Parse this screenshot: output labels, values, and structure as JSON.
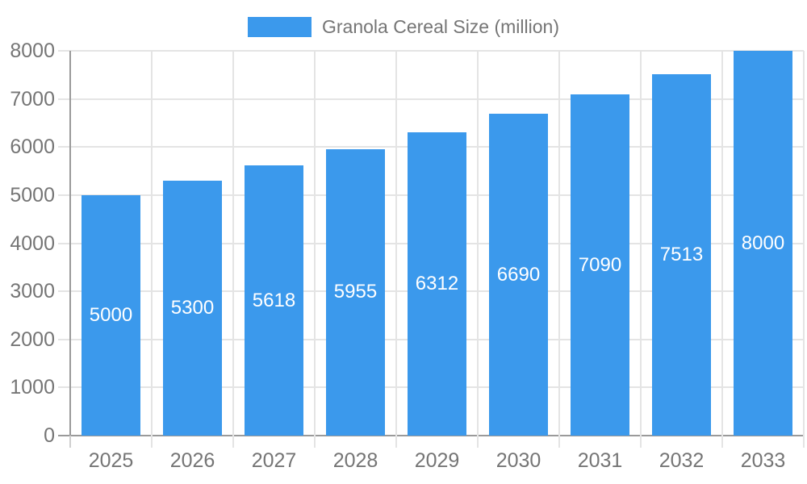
{
  "chart_data": {
    "type": "bar",
    "title": "Granola Cereal Size (million)",
    "legend_entries": [
      "Granola Cereal Size (million)"
    ],
    "legend_position": "top-center",
    "categories": [
      "2025",
      "2026",
      "2027",
      "2028",
      "2029",
      "2030",
      "2031",
      "2032",
      "2033"
    ],
    "series": [
      {
        "name": "Granola Cereal Size (million)",
        "values": [
          5000,
          5300,
          5618,
          5955,
          6312,
          6690,
          7090,
          7513,
          8000
        ]
      }
    ],
    "data_labels": [
      "5000",
      "5300",
      "5618",
      "5955",
      "6312",
      "6690",
      "7090",
      "7513",
      "8000"
    ],
    "data_label_position": "inside-center",
    "xlabel": "",
    "ylabel": "",
    "ylim": [
      0,
      8000
    ],
    "y_ticks": [
      0,
      1000,
      2000,
      3000,
      4000,
      5000,
      6000,
      7000,
      8000
    ],
    "grid": true,
    "colors": {
      "bar": "#3b99ec",
      "bar_label": "#ffffff",
      "axis_text": "#757575",
      "axis_line": "#9a9a9a",
      "gridline": "#e4e4e4",
      "tick": "#cfcfcf",
      "background": "#ffffff"
    }
  }
}
